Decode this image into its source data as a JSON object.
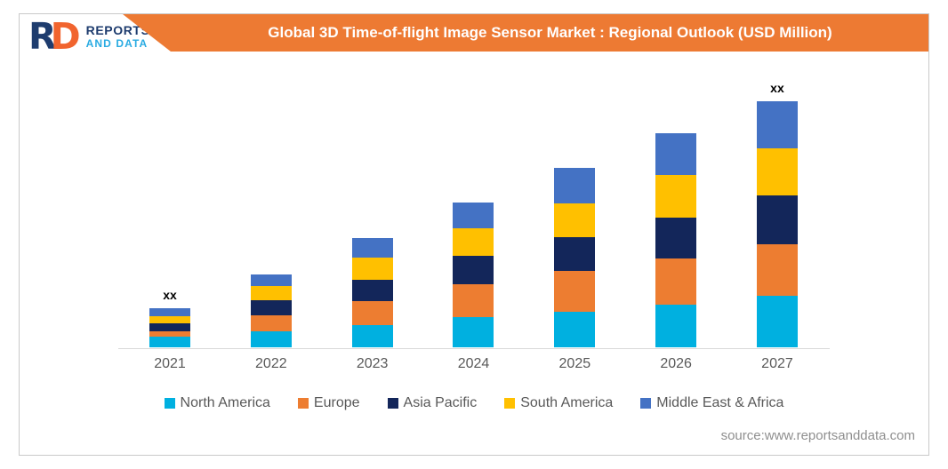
{
  "header": {
    "logo": {
      "monogram_r": "R",
      "monogram_d": "D",
      "line1": "REPORTS",
      "line2": "AND DATA"
    },
    "banner": {
      "title": "Global 3D Time-of-flight Image Sensor Market : Regional Outlook (USD Million)",
      "color": "#ed7a33",
      "text_color": "#ffffff"
    }
  },
  "chart_data": {
    "type": "bar",
    "stacked": true,
    "title": "Global 3D Time-of-flight Image Sensor Market : Regional Outlook (USD Million)",
    "value_unit": "USD Million (actual values masked, shown as xx)",
    "categories": [
      "2021",
      "2022",
      "2023",
      "2024",
      "2025",
      "2026",
      "2027"
    ],
    "series": [
      {
        "name": "North America",
        "color": "#00b0e0",
        "values": [
          12,
          18,
          25,
          34,
          40,
          48,
          58
        ]
      },
      {
        "name": "Europe",
        "color": "#ed7d31",
        "values": [
          6,
          18,
          27,
          37,
          46,
          52,
          58
        ]
      },
      {
        "name": "Asia Pacific",
        "color": "#13265a",
        "values": [
          9,
          17,
          24,
          32,
          38,
          46,
          55
        ]
      },
      {
        "name": "South America",
        "color": "#ffc000",
        "values": [
          8,
          16,
          25,
          31,
          38,
          48,
          53
        ]
      },
      {
        "name": "Middle East & Africa",
        "color": "#4472c4",
        "values": [
          9,
          13,
          22,
          29,
          40,
          47,
          53
        ]
      }
    ],
    "bar_labels": [
      "xx",
      "",
      "",
      "",
      "",
      "",
      "xx"
    ],
    "legend_position": "bottom",
    "grid": false,
    "axis_line_color": "#d9d9d9",
    "tick_label_color": "#595959"
  },
  "footer": {
    "source": "source:www.reportsanddata.com"
  }
}
